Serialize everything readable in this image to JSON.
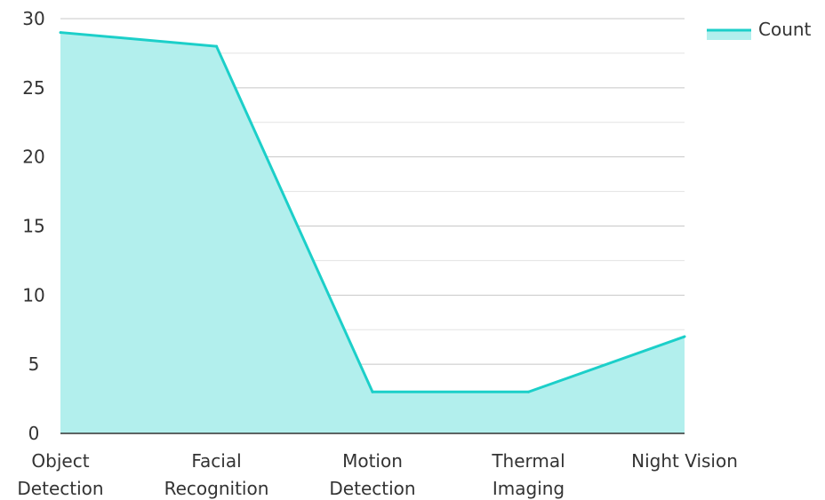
{
  "chart_data": {
    "type": "area",
    "categories": [
      [
        "Object",
        "Detection"
      ],
      [
        "Facial",
        "Recognition"
      ],
      [
        "Motion",
        "Detection"
      ],
      [
        "Thermal",
        "Imaging"
      ],
      [
        "Night Vision"
      ]
    ],
    "series": [
      {
        "name": "Count",
        "values": [
          29,
          28,
          3,
          3,
          7
        ]
      }
    ],
    "title": "",
    "xlabel": "",
    "ylabel": "",
    "ylim": [
      0,
      30
    ],
    "yticks": [
      0,
      5,
      10,
      15,
      20,
      25,
      30
    ],
    "grid": true,
    "legend_position": "top-right",
    "colors": {
      "line": "#1ccfc9",
      "fill": "#b2efed",
      "grid": "#cccccc",
      "axis": "#333333"
    }
  }
}
